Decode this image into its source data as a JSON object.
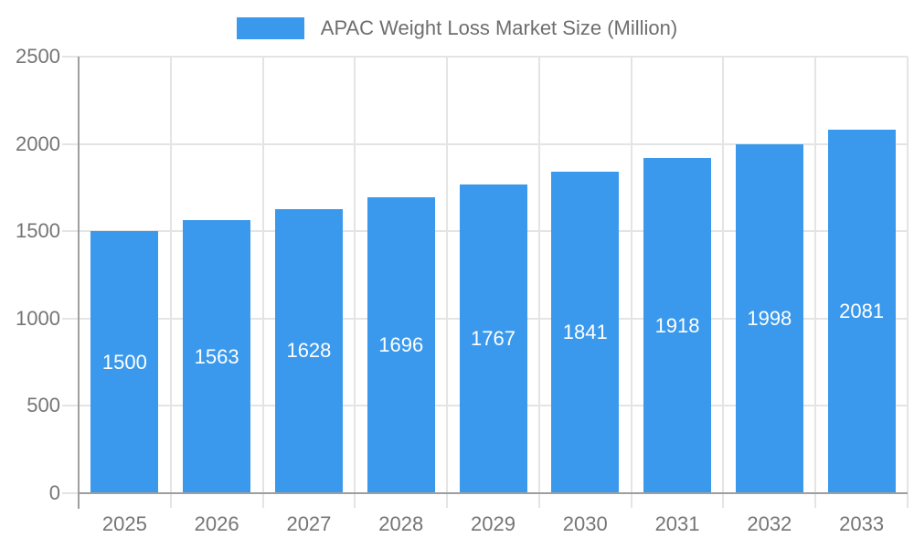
{
  "legend": {
    "label": "APAC Weight Loss Market Size (Million)"
  },
  "chart_data": {
    "type": "bar",
    "title": "APAC Weight Loss Market Size (Million)",
    "categories": [
      "2025",
      "2026",
      "2027",
      "2028",
      "2029",
      "2030",
      "2031",
      "2032",
      "2033"
    ],
    "values": [
      1500,
      1563,
      1628,
      1696,
      1767,
      1841,
      1918,
      1998,
      2081
    ],
    "xlabel": "",
    "ylabel": "",
    "ylim": [
      0,
      2500
    ],
    "yticks": [
      0,
      500,
      1000,
      1500,
      2000,
      2500
    ],
    "grid": true,
    "legend_position": "top",
    "value_labels": "centered-inside-bars",
    "colors": {
      "bar": "#3A99EC",
      "value_label": "#FFFFFF",
      "axis_line": "#9E9E9E",
      "gridline": "#E4E4E4",
      "tick_label": "#757575",
      "legend_text": "#6E6E6E",
      "background": "#FFFFFF"
    }
  }
}
